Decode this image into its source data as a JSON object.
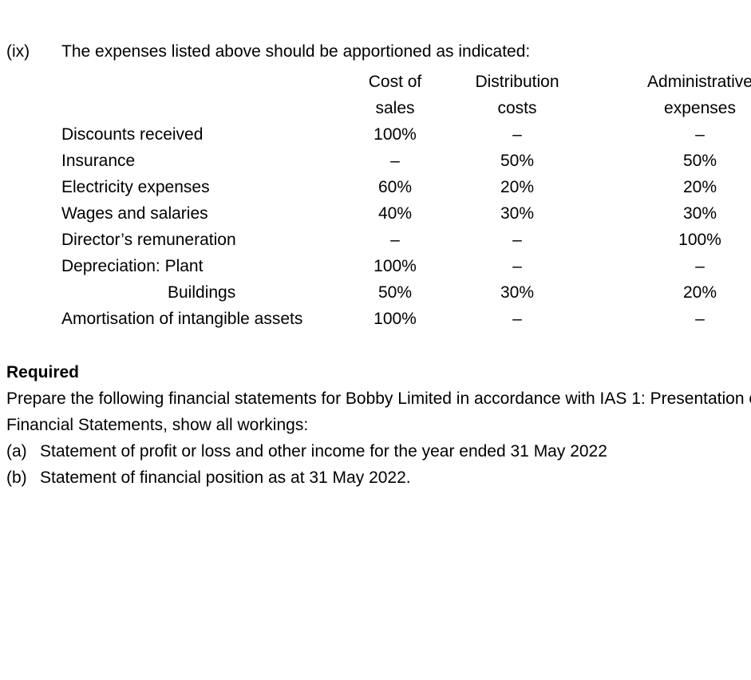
{
  "page": {
    "background_color": "#ffffff",
    "text_color": "#000000"
  },
  "question": {
    "item_marker": "(ix)",
    "intro": "The expenses listed above should be apportioned as indicated:"
  },
  "apportionment_table": {
    "column_headers": [
      {
        "line1": "Cost of",
        "line2": "sales"
      },
      {
        "line1": "Distribution",
        "line2": "costs"
      },
      {
        "line1": "Administrative",
        "line2": "expenses"
      }
    ],
    "rows": [
      {
        "label": "Discounts received",
        "cost_of_sales": "100%",
        "distribution_costs": "–",
        "administrative_expenses": "–"
      },
      {
        "label": "Insurance",
        "cost_of_sales": "–",
        "distribution_costs": "50%",
        "administrative_expenses": "50%"
      },
      {
        "label": "Electricity expenses",
        "cost_of_sales": "60%",
        "distribution_costs": "20%",
        "administrative_expenses": "20%"
      },
      {
        "label": "Wages and salaries",
        "cost_of_sales": "40%",
        "distribution_costs": "30%",
        "administrative_expenses": "30%"
      },
      {
        "label": "Director’s remuneration",
        "cost_of_sales": "–",
        "distribution_costs": "–",
        "administrative_expenses": "100%"
      },
      {
        "label": "Depreciation: Plant",
        "cost_of_sales": "100%",
        "distribution_costs": "–",
        "administrative_expenses": "–"
      },
      {
        "label": "Buildings",
        "cost_of_sales": "50%",
        "distribution_costs": "30%",
        "administrative_expenses": "20%"
      },
      {
        "label": "Amortisation of intangible assets",
        "cost_of_sales": "100%",
        "distribution_costs": "–",
        "administrative_expenses": "–"
      }
    ]
  },
  "required_section": {
    "heading": "Required",
    "paragraph_line1": "Prepare the following financial statements for Bobby Limited in accordance with IAS 1: Presentation o",
    "paragraph_line2": "Financial Statements, show all workings:",
    "items": [
      {
        "marker": "(a)",
        "text": "Statement of profit or loss and other income for the year ended 31 May 2022"
      },
      {
        "marker": "(b)",
        "text": "Statement of financial position as at 31 May 2022."
      }
    ]
  }
}
